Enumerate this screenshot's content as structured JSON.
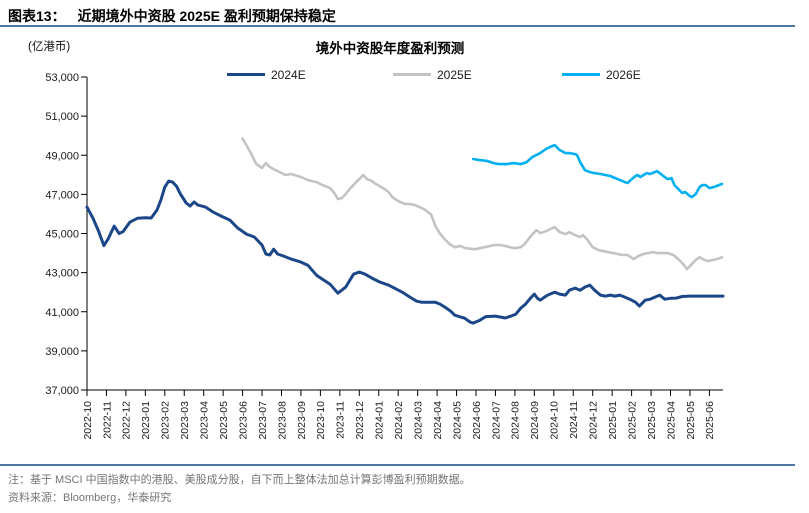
{
  "figure": {
    "label": "图表13：",
    "title": "近期境外中资股 2025E 盈利预期保持稳定"
  },
  "notes": {
    "note": "注：基于 MSCI 中国指数中的港股、美股成分股，自下而上整体法加总计算彭博盈利预期数据。",
    "source": "资料来源：Bloomberg，华泰研究"
  },
  "chart_data": {
    "type": "line",
    "title": "境外中资股年度盈利预测",
    "unit_label": "(亿港币)",
    "ylabel": "",
    "xlabel": "",
    "ylim": [
      37000,
      53000
    ],
    "y_tick_step": 2000,
    "y_ticks": [
      "53,000",
      "51,000",
      "49,000",
      "47,000",
      "45,000",
      "43,000",
      "41,000",
      "39,000",
      "37,000"
    ],
    "x_ticks": [
      "2022-10",
      "2022-11",
      "2022-12",
      "2023-01",
      "2023-02",
      "2023-03",
      "2023-04",
      "2023-05",
      "2023-06",
      "2023-07",
      "2023-08",
      "2023-09",
      "2023-10",
      "2023-11",
      "2023-12",
      "2024-01",
      "2024-02",
      "2024-03",
      "2024-04",
      "2024-05",
      "2024-06",
      "2024-07",
      "2024-08",
      "2024-09",
      "2024-10",
      "2024-11",
      "2024-12",
      "2025-01",
      "2025-02",
      "2025-03",
      "2025-04",
      "2025-05",
      "2025-06"
    ],
    "x_unit": "month index, 0 = 2022-10 (fractional = intra-month position)",
    "gridlines": false,
    "legend_position": "top-center",
    "axis_color": "#000000",
    "series": [
      {
        "name": "2024E",
        "color": "#1B4789",
        "width": 3,
        "points": [
          [
            0.0,
            46350
          ],
          [
            0.3,
            45800
          ],
          [
            0.6,
            45100
          ],
          [
            0.87,
            44380
          ],
          [
            1.1,
            44750
          ],
          [
            1.4,
            45380
          ],
          [
            1.65,
            45000
          ],
          [
            1.85,
            45090
          ],
          [
            2.2,
            45580
          ],
          [
            2.6,
            45780
          ],
          [
            3.0,
            45800
          ],
          [
            3.3,
            45790
          ],
          [
            3.6,
            46200
          ],
          [
            3.8,
            46710
          ],
          [
            4.0,
            47370
          ],
          [
            4.2,
            47680
          ],
          [
            4.4,
            47630
          ],
          [
            4.6,
            47420
          ],
          [
            4.8,
            47020
          ],
          [
            5.1,
            46560
          ],
          [
            5.3,
            46400
          ],
          [
            5.5,
            46610
          ],
          [
            5.7,
            46450
          ],
          [
            5.9,
            46400
          ],
          [
            6.1,
            46350
          ],
          [
            6.5,
            46090
          ],
          [
            6.9,
            45890
          ],
          [
            7.35,
            45680
          ],
          [
            7.75,
            45280
          ],
          [
            8.2,
            44970
          ],
          [
            8.6,
            44820
          ],
          [
            9.0,
            44410
          ],
          [
            9.2,
            43950
          ],
          [
            9.4,
            43900
          ],
          [
            9.6,
            44200
          ],
          [
            9.8,
            43950
          ],
          [
            10.1,
            43850
          ],
          [
            10.5,
            43690
          ],
          [
            11.0,
            43540
          ],
          [
            11.35,
            43380
          ],
          [
            11.8,
            42870
          ],
          [
            12.1,
            42670
          ],
          [
            12.5,
            42410
          ],
          [
            12.9,
            41950
          ],
          [
            13.3,
            42260
          ],
          [
            13.7,
            42920
          ],
          [
            14.0,
            43030
          ],
          [
            14.3,
            42920
          ],
          [
            14.65,
            42720
          ],
          [
            15.05,
            42520
          ],
          [
            15.5,
            42360
          ],
          [
            15.9,
            42160
          ],
          [
            16.3,
            41950
          ],
          [
            16.6,
            41750
          ],
          [
            16.95,
            41540
          ],
          [
            17.2,
            41490
          ],
          [
            17.9,
            41490
          ],
          [
            18.15,
            41390
          ],
          [
            18.4,
            41240
          ],
          [
            18.7,
            41030
          ],
          [
            18.9,
            40830
          ],
          [
            19.2,
            40730
          ],
          [
            19.4,
            40680
          ],
          [
            19.7,
            40470
          ],
          [
            19.85,
            40420
          ],
          [
            20.2,
            40570
          ],
          [
            20.5,
            40750
          ],
          [
            21.0,
            40780
          ],
          [
            21.5,
            40680
          ],
          [
            21.8,
            40780
          ],
          [
            22.05,
            40880
          ],
          [
            22.3,
            41180
          ],
          [
            22.55,
            41390
          ],
          [
            22.8,
            41700
          ],
          [
            23.0,
            41900
          ],
          [
            23.15,
            41700
          ],
          [
            23.3,
            41590
          ],
          [
            23.6,
            41800
          ],
          [
            23.8,
            41900
          ],
          [
            24.05,
            42000
          ],
          [
            24.3,
            41900
          ],
          [
            24.6,
            41850
          ],
          [
            24.8,
            42100
          ],
          [
            25.1,
            42210
          ],
          [
            25.35,
            42100
          ],
          [
            25.6,
            42260
          ],
          [
            25.85,
            42360
          ],
          [
            26.1,
            42100
          ],
          [
            26.4,
            41850
          ],
          [
            26.65,
            41800
          ],
          [
            26.9,
            41850
          ],
          [
            27.15,
            41800
          ],
          [
            27.4,
            41850
          ],
          [
            27.65,
            41750
          ],
          [
            27.9,
            41640
          ],
          [
            28.2,
            41490
          ],
          [
            28.4,
            41290
          ],
          [
            28.7,
            41590
          ],
          [
            28.95,
            41640
          ],
          [
            29.2,
            41750
          ],
          [
            29.45,
            41850
          ],
          [
            29.7,
            41640
          ],
          [
            30.0,
            41690
          ],
          [
            30.3,
            41700
          ],
          [
            30.6,
            41780
          ],
          [
            31.0,
            41800
          ],
          [
            32.7,
            41800
          ]
        ]
      },
      {
        "name": "2025E",
        "color": "#C3C3C3",
        "width": 2.6,
        "points": [
          [
            8.0,
            49850
          ],
          [
            8.2,
            49500
          ],
          [
            8.4,
            49160
          ],
          [
            8.7,
            48550
          ],
          [
            9.0,
            48350
          ],
          [
            9.2,
            48600
          ],
          [
            9.4,
            48400
          ],
          [
            9.6,
            48290
          ],
          [
            9.9,
            48140
          ],
          [
            10.2,
            47990
          ],
          [
            10.5,
            48040
          ],
          [
            11.0,
            47890
          ],
          [
            11.35,
            47730
          ],
          [
            11.8,
            47630
          ],
          [
            12.1,
            47480
          ],
          [
            12.5,
            47320
          ],
          [
            12.75,
            47020
          ],
          [
            12.9,
            46760
          ],
          [
            13.1,
            46810
          ],
          [
            13.3,
            47020
          ],
          [
            13.5,
            47270
          ],
          [
            13.75,
            47530
          ],
          [
            14.0,
            47780
          ],
          [
            14.2,
            47990
          ],
          [
            14.4,
            47780
          ],
          [
            14.65,
            47680
          ],
          [
            14.85,
            47530
          ],
          [
            15.05,
            47420
          ],
          [
            15.3,
            47270
          ],
          [
            15.5,
            47120
          ],
          [
            15.7,
            46860
          ],
          [
            15.9,
            46710
          ],
          [
            16.1,
            46610
          ],
          [
            16.35,
            46510
          ],
          [
            16.6,
            46510
          ],
          [
            16.85,
            46450
          ],
          [
            17.1,
            46350
          ],
          [
            17.4,
            46200
          ],
          [
            17.7,
            45950
          ],
          [
            17.9,
            45400
          ],
          [
            18.15,
            45000
          ],
          [
            18.4,
            44700
          ],
          [
            18.65,
            44460
          ],
          [
            18.9,
            44300
          ],
          [
            19.2,
            44360
          ],
          [
            19.45,
            44250
          ],
          [
            19.95,
            44200
          ],
          [
            20.45,
            44300
          ],
          [
            20.95,
            44410
          ],
          [
            21.25,
            44410
          ],
          [
            21.5,
            44360
          ],
          [
            21.75,
            44300
          ],
          [
            22.0,
            44250
          ],
          [
            22.3,
            44300
          ],
          [
            22.5,
            44460
          ],
          [
            22.8,
            44850
          ],
          [
            23.1,
            45170
          ],
          [
            23.3,
            45020
          ],
          [
            23.6,
            45120
          ],
          [
            24.05,
            45330
          ],
          [
            24.3,
            45070
          ],
          [
            24.6,
            44970
          ],
          [
            24.8,
            45070
          ],
          [
            25.1,
            44920
          ],
          [
            25.35,
            44820
          ],
          [
            25.5,
            44920
          ],
          [
            25.75,
            44660
          ],
          [
            26.0,
            44300
          ],
          [
            26.3,
            44150
          ],
          [
            26.55,
            44100
          ],
          [
            26.8,
            44050
          ],
          [
            27.05,
            44000
          ],
          [
            27.3,
            43950
          ],
          [
            27.55,
            43900
          ],
          [
            27.8,
            43900
          ],
          [
            28.1,
            43690
          ],
          [
            28.35,
            43850
          ],
          [
            28.6,
            43950
          ],
          [
            28.85,
            44000
          ],
          [
            29.1,
            44050
          ],
          [
            29.35,
            44000
          ],
          [
            29.6,
            44000
          ],
          [
            29.85,
            44000
          ],
          [
            30.15,
            43900
          ],
          [
            30.4,
            43690
          ],
          [
            30.65,
            43440
          ],
          [
            30.85,
            43180
          ],
          [
            31.1,
            43440
          ],
          [
            31.35,
            43690
          ],
          [
            31.5,
            43790
          ],
          [
            31.65,
            43690
          ],
          [
            31.9,
            43590
          ],
          [
            32.15,
            43640
          ],
          [
            32.4,
            43690
          ],
          [
            32.65,
            43790
          ]
        ]
      },
      {
        "name": "2026E",
        "color": "#00B0F0",
        "width": 2.6,
        "points": [
          [
            19.85,
            48810
          ],
          [
            20.2,
            48750
          ],
          [
            20.6,
            48700
          ],
          [
            20.9,
            48600
          ],
          [
            21.2,
            48550
          ],
          [
            21.6,
            48550
          ],
          [
            21.9,
            48600
          ],
          [
            22.3,
            48550
          ],
          [
            22.6,
            48650
          ],
          [
            22.9,
            48910
          ],
          [
            23.3,
            49110
          ],
          [
            23.6,
            49320
          ],
          [
            23.8,
            49420
          ],
          [
            24.05,
            49520
          ],
          [
            24.3,
            49270
          ],
          [
            24.6,
            49110
          ],
          [
            24.8,
            49110
          ],
          [
            25.1,
            49060
          ],
          [
            25.2,
            49010
          ],
          [
            25.35,
            48650
          ],
          [
            25.6,
            48240
          ],
          [
            25.85,
            48140
          ],
          [
            26.1,
            48090
          ],
          [
            26.4,
            48040
          ],
          [
            26.65,
            47990
          ],
          [
            26.9,
            47940
          ],
          [
            27.15,
            47830
          ],
          [
            27.4,
            47730
          ],
          [
            27.65,
            47630
          ],
          [
            27.8,
            47580
          ],
          [
            27.95,
            47730
          ],
          [
            28.2,
            47940
          ],
          [
            28.3,
            47990
          ],
          [
            28.45,
            47890
          ],
          [
            28.7,
            48040
          ],
          [
            28.8,
            48090
          ],
          [
            28.95,
            48040
          ],
          [
            29.2,
            48140
          ],
          [
            29.3,
            48190
          ],
          [
            29.5,
            48040
          ],
          [
            29.7,
            47890
          ],
          [
            29.85,
            47780
          ],
          [
            30.05,
            47830
          ],
          [
            30.2,
            47480
          ],
          [
            30.5,
            47170
          ],
          [
            30.6,
            47070
          ],
          [
            30.75,
            47120
          ],
          [
            31.0,
            46910
          ],
          [
            31.1,
            46860
          ],
          [
            31.3,
            47020
          ],
          [
            31.5,
            47380
          ],
          [
            31.65,
            47480
          ],
          [
            31.8,
            47480
          ],
          [
            32.0,
            47320
          ],
          [
            32.25,
            47380
          ],
          [
            32.5,
            47480
          ],
          [
            32.65,
            47530
          ]
        ]
      }
    ]
  }
}
